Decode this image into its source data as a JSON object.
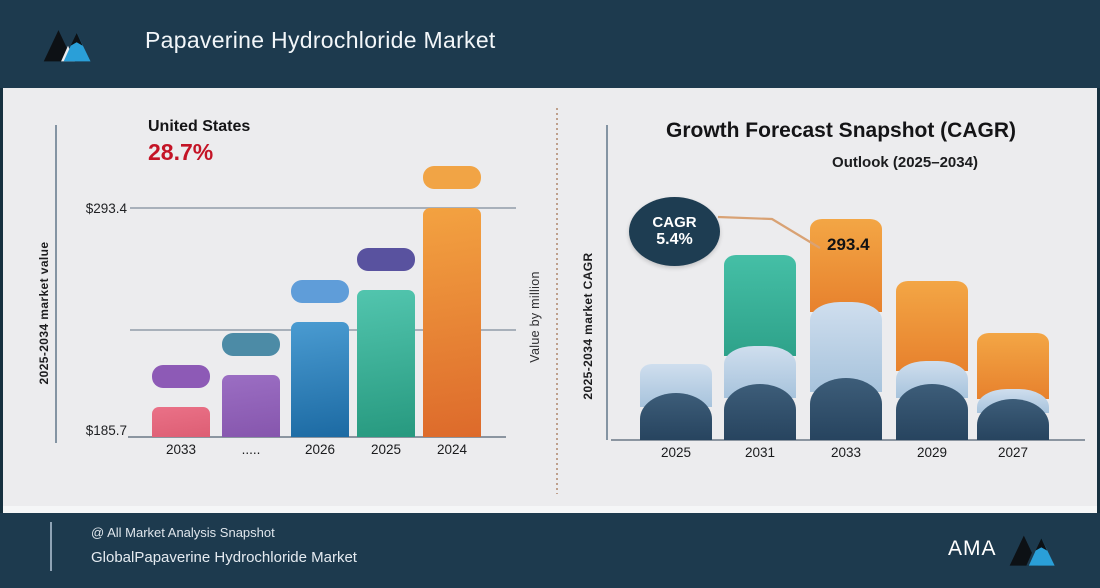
{
  "header": {
    "title": "Papaverine Hydrochloride Market"
  },
  "footer": {
    "attribution": "@ All Market Analysis Snapshot",
    "source": "GlobalPapaverine Hydrochloride Market",
    "brand": "AMA"
  },
  "colors": {
    "header_bg": "#1d3a4e",
    "panel_bg": "#ececee",
    "accent_red": "#c41426",
    "axis": "#8494a3",
    "badge_bg": "#1e3d52",
    "connector": "#d9a274"
  },
  "chart_data": [
    {
      "type": "bar",
      "region_label": "United States",
      "region_value": "28.7%",
      "ylabel": "2025-2034 market value",
      "ylabel_secondary": "Value by million",
      "ytick_top": "$293.4",
      "ytick_bottom": "$185.7",
      "ylim": [
        185.7,
        293.4
      ],
      "gridlines_unlabeled": [
        236
      ],
      "categories": [
        "2033",
        ".....",
        "2026",
        "2025",
        "2024"
      ],
      "values": [
        200,
        215,
        240,
        255,
        293.4
      ],
      "bars": [
        {
          "category": "2033",
          "value": 200,
          "color_top": "#ea7187",
          "color_bottom": "#dd5e74",
          "cap_color": "#8d5ab6"
        },
        {
          "category": ".....",
          "value": 215,
          "color_top": "#9b6ec3",
          "color_bottom": "#8656ad",
          "cap_color": "#4c8ba6"
        },
        {
          "category": "2026",
          "value": 240,
          "color_top": "#4a9bd1",
          "color_bottom": "#1c6aa3",
          "cap_color": "#5f9dd9"
        },
        {
          "category": "2025",
          "value": 255,
          "color_top": "#52c5ae",
          "color_bottom": "#27997f",
          "cap_color": "#59529f"
        },
        {
          "category": "2024",
          "value": 293.4,
          "color_top": "#f3a241",
          "color_bottom": "#dd6a2b",
          "cap_color": "#f1a445"
        }
      ]
    },
    {
      "type": "stacked-bar",
      "title": "Growth Forecast Snapshot (CAGR)",
      "subtitle": "Outlook (2025–2034)",
      "ylabel": "2025-2034 market CAGR",
      "badge": {
        "label": "CAGR",
        "value": "5.4%"
      },
      "annotation": {
        "text": "293.4",
        "category": "2033"
      },
      "ylim": [
        0,
        293.4
      ],
      "categories": [
        "2025",
        "2031",
        "2033",
        "2029",
        "2027"
      ],
      "totals": [
        101,
        246,
        293.4,
        211,
        142
      ],
      "bars": [
        {
          "category": "2025",
          "segments": [
            {
              "value": 44,
              "color_key": "navy"
            },
            {
              "value": 57,
              "color_key": "lightblue"
            }
          ]
        },
        {
          "category": "2031",
          "segments": [
            {
              "value": 56,
              "color_key": "navy"
            },
            {
              "value": 56,
              "color_key": "lightblue"
            },
            {
              "value": 134,
              "color_key": "teal"
            }
          ]
        },
        {
          "category": "2033",
          "segments": [
            {
              "value": 64,
              "color_key": "navy"
            },
            {
              "value": 106,
              "color_key": "lightblue"
            },
            {
              "value": 123.4,
              "color_key": "orange"
            }
          ]
        },
        {
          "category": "2029",
          "segments": [
            {
              "value": 56,
              "color_key": "navy"
            },
            {
              "value": 36,
              "color_key": "lightblue"
            },
            {
              "value": 119,
              "color_key": "orange"
            }
          ]
        },
        {
          "category": "2027",
          "segments": [
            {
              "value": 36,
              "color_key": "navy"
            },
            {
              "value": 19,
              "color_key": "lightblue"
            },
            {
              "value": 87,
              "color_key": "orange"
            }
          ]
        }
      ],
      "segment_colors": {
        "navy": [
          "#3d5d79",
          "#27445f"
        ],
        "lightblue": [
          "#cfdeee",
          "#a7c3dc"
        ],
        "teal": [
          "#45bfa6",
          "#2ea28a"
        ],
        "orange": [
          "#f3a645",
          "#e7812d"
        ]
      }
    }
  ]
}
